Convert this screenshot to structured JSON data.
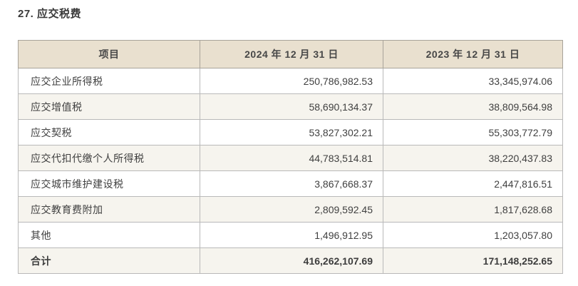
{
  "page": {
    "title": "27. 应交税费"
  },
  "table": {
    "headers": {
      "item": "项目",
      "col2024": "2024 年 12 月 31 日",
      "col2023": "2023 年 12 月 31 日"
    },
    "rows": [
      {
        "label": "应交企业所得税",
        "v2024": "250,786,982.53",
        "v2023": "33,345,974.06"
      },
      {
        "label": "应交增值税",
        "v2024": "58,690,134.37",
        "v2023": "38,809,564.98"
      },
      {
        "label": "应交契税",
        "v2024": "53,827,302.21",
        "v2023": "55,303,772.79"
      },
      {
        "label": "应交代扣代缴个人所得税",
        "v2024": "44,783,514.81",
        "v2023": "38,220,437.83"
      },
      {
        "label": "应交城市维护建设税",
        "v2024": "3,867,668.37",
        "v2023": "2,447,816.51"
      },
      {
        "label": "应交教育费附加",
        "v2024": "2,809,592.45",
        "v2023": "1,817,628.68"
      },
      {
        "label": "其他",
        "v2024": "1,496,912.95",
        "v2023": "1,203,057.80"
      }
    ],
    "total": {
      "label": "合计",
      "v2024": "416,262,107.69",
      "v2023": "171,148,252.65"
    }
  },
  "colors": {
    "header_bg": "#e9e0cf",
    "alt_row_bg": "#f6f4ee",
    "outer_border": "#8e8e8e",
    "inner_border": "#b9b9b9",
    "text": "#404040"
  }
}
